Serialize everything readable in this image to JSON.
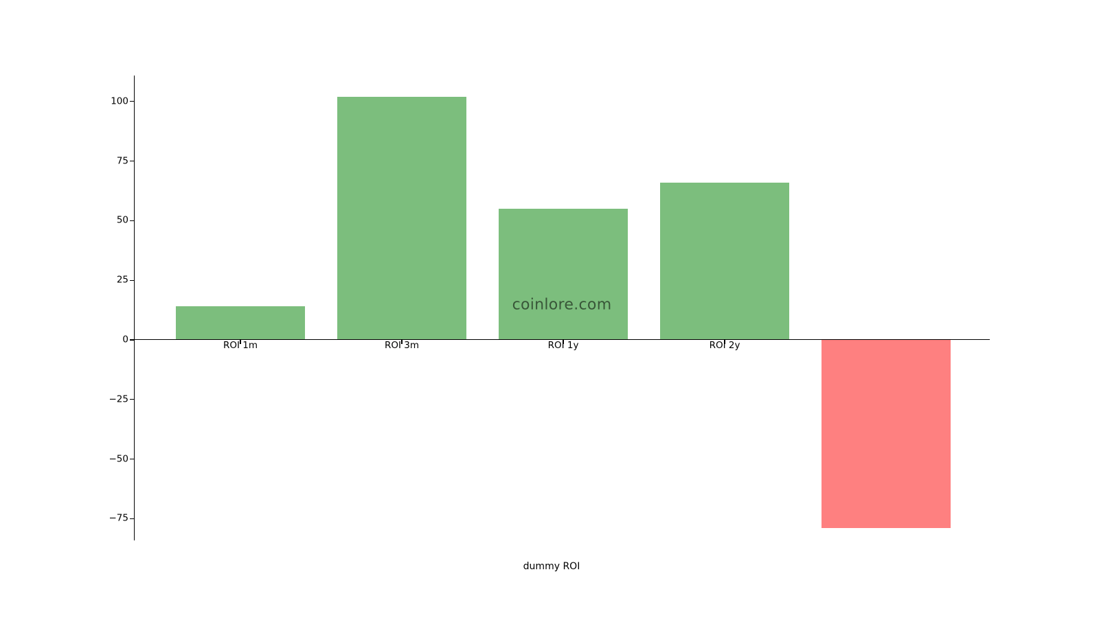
{
  "watermark": {
    "text": "coinlore.com"
  },
  "chart_data": {
    "type": "bar",
    "title": "",
    "xlabel": "dummy ROI",
    "ylabel": "",
    "categories": [
      "ROI 1m",
      "ROI 3m",
      "ROI 1y",
      "ROI 2y",
      ""
    ],
    "values": [
      14,
      102,
      55,
      66,
      -79
    ],
    "yticks": [
      {
        "value": 100,
        "label": "100"
      },
      {
        "value": 75,
        "label": "75"
      },
      {
        "value": 50,
        "label": "50"
      },
      {
        "value": 25,
        "label": "25"
      },
      {
        "value": 0,
        "label": "0"
      },
      {
        "value": -25,
        "label": "−25"
      },
      {
        "value": -50,
        "label": "−50"
      },
      {
        "value": -75,
        "label": "−75"
      }
    ],
    "ylim": [
      -84,
      111
    ],
    "grid": false,
    "legend": null,
    "colors": {
      "positive": "#7cbe7d",
      "negative": "#fe8080",
      "axis": "#000000",
      "tick_label": "#000000",
      "watermark": "rgba(0,0,0,0.55)"
    }
  }
}
